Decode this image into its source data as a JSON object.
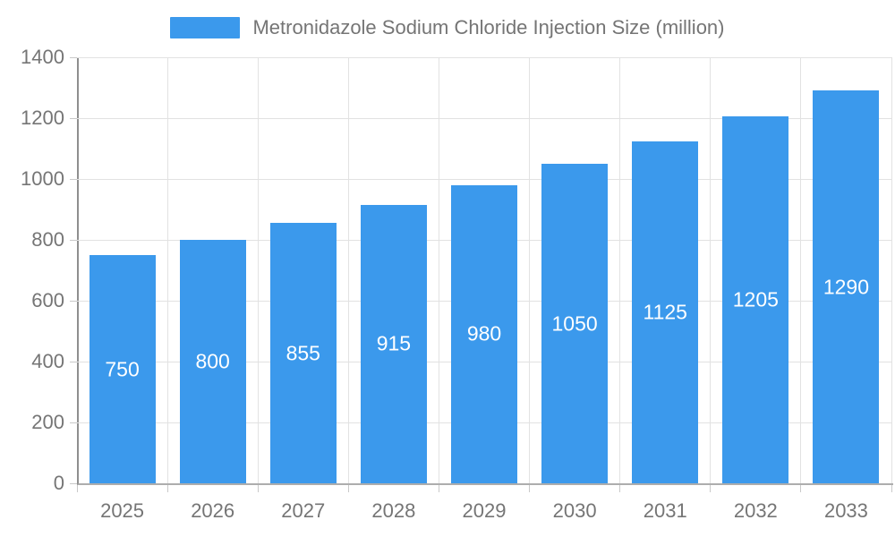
{
  "chart_data": {
    "type": "bar",
    "title": "Metronidazole Sodium Chloride Injection Size (million)",
    "categories": [
      "2025",
      "2026",
      "2027",
      "2028",
      "2029",
      "2030",
      "2031",
      "2032",
      "2033"
    ],
    "values": [
      750,
      800,
      855,
      915,
      980,
      1050,
      1125,
      1205,
      1290
    ],
    "xlabel": "",
    "ylabel": "",
    "ylim": [
      0,
      1400
    ],
    "ytick_step": 200,
    "grid": true,
    "legend_position": "top",
    "data_labels_position": "inside-center"
  },
  "colors": {
    "bar": "#3B99EC",
    "bar_label": "#ffffff",
    "axis_text": "#757575",
    "gridline": "#e2e2e2",
    "axis_line": "#9e9e9e",
    "background": "#ffffff"
  }
}
